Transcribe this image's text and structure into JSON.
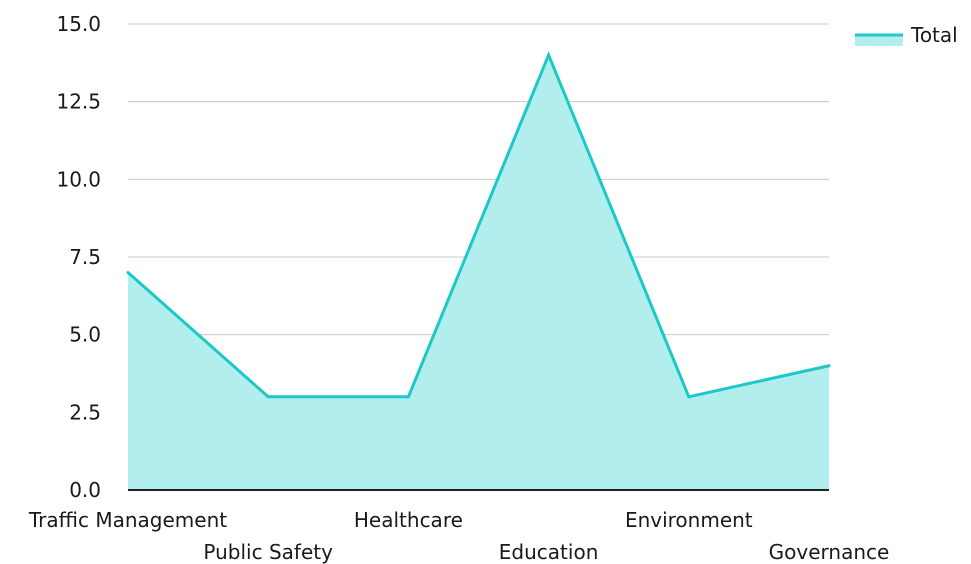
{
  "chart_data": {
    "type": "area",
    "categories": [
      "Traffic Management",
      "Public Safety",
      "Healthcare",
      "Education",
      "Environment",
      "Governance"
    ],
    "series": [
      {
        "name": "Total",
        "values": [
          7,
          3,
          3,
          14,
          3,
          4
        ]
      }
    ],
    "ylim": [
      0,
      15
    ],
    "yticks": [
      "0.0",
      "2.5",
      "5.0",
      "7.5",
      "10.0",
      "12.5",
      "15.0"
    ],
    "grid": true,
    "legend_position": "top-right",
    "colors": {
      "line": "#1cc8c8",
      "fill": "#b2eeee",
      "grid": "#c8c8c8",
      "axis": "#222222"
    }
  }
}
